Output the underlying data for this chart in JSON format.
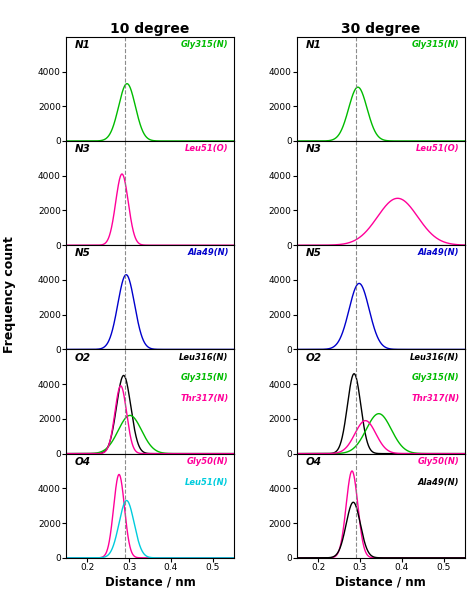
{
  "title_left": "10 degree",
  "title_right": "30 degree",
  "ylabel": "Frequency count",
  "xlabel": "Distance / nm",
  "xlim": [
    0.15,
    0.55
  ],
  "ylim": [
    0,
    6000
  ],
  "yticks": [
    0,
    2000,
    4000
  ],
  "xticks": [
    0.2,
    0.3,
    0.4,
    0.5
  ],
  "vline": 0.29,
  "subplots": {
    "left": [
      {
        "label": "N1",
        "curves": [
          {
            "mu": 0.295,
            "sigma": 0.02,
            "amp": 3300,
            "color": "#00bb00",
            "name": "Gly315(N)"
          }
        ]
      },
      {
        "label": "N3",
        "curves": [
          {
            "mu": 0.283,
            "sigma": 0.015,
            "amp": 4100,
            "color": "#ff0099",
            "name": "Leu51(O)"
          }
        ]
      },
      {
        "label": "N5",
        "curves": [
          {
            "mu": 0.293,
            "sigma": 0.02,
            "amp": 4300,
            "color": "#0000cc",
            "name": "Ala49(N)"
          }
        ]
      },
      {
        "label": "O2",
        "curves": [
          {
            "mu": 0.287,
            "sigma": 0.017,
            "amp": 4500,
            "color": "#000000",
            "name": "Leu316(N)"
          },
          {
            "mu": 0.302,
            "sigma": 0.028,
            "amp": 2200,
            "color": "#00bb00",
            "name": "Gly315(N)"
          },
          {
            "mu": 0.28,
            "sigma": 0.014,
            "amp": 3900,
            "color": "#ff0099",
            "name": "Thr317(N)"
          }
        ]
      },
      {
        "label": "O4",
        "curves": [
          {
            "mu": 0.276,
            "sigma": 0.013,
            "amp": 4800,
            "color": "#ff0099",
            "name": "Gly50(N)"
          },
          {
            "mu": 0.294,
            "sigma": 0.018,
            "amp": 3300,
            "color": "#00ccdd",
            "name": "Leu51(N)"
          }
        ]
      }
    ],
    "right": [
      {
        "label": "N1",
        "curves": [
          {
            "mu": 0.295,
            "sigma": 0.022,
            "amp": 3100,
            "color": "#00bb00",
            "name": "Gly315(N)"
          }
        ]
      },
      {
        "label": "N3",
        "curves": [
          {
            "mu": 0.39,
            "sigma": 0.048,
            "amp": 2700,
            "color": "#ff0099",
            "name": "Leu51(O)"
          }
        ]
      },
      {
        "label": "N5",
        "curves": [
          {
            "mu": 0.298,
            "sigma": 0.024,
            "amp": 3800,
            "color": "#0000cc",
            "name": "Ala49(N)"
          }
        ]
      },
      {
        "label": "O2",
        "curves": [
          {
            "mu": 0.286,
            "sigma": 0.016,
            "amp": 4600,
            "color": "#000000",
            "name": "Leu316(N)"
          },
          {
            "mu": 0.345,
            "sigma": 0.03,
            "amp": 2300,
            "color": "#00bb00",
            "name": "Gly315(N)"
          },
          {
            "mu": 0.313,
            "sigma": 0.025,
            "amp": 1900,
            "color": "#ff0099",
            "name": "Thr317(N)"
          }
        ]
      },
      {
        "label": "O4",
        "curves": [
          {
            "mu": 0.281,
            "sigma": 0.014,
            "amp": 5000,
            "color": "#ff0099",
            "name": "Gly50(N)"
          },
          {
            "mu": 0.284,
            "sigma": 0.017,
            "amp": 3200,
            "color": "#000000",
            "name": "Ala49(N)"
          }
        ]
      }
    ]
  }
}
